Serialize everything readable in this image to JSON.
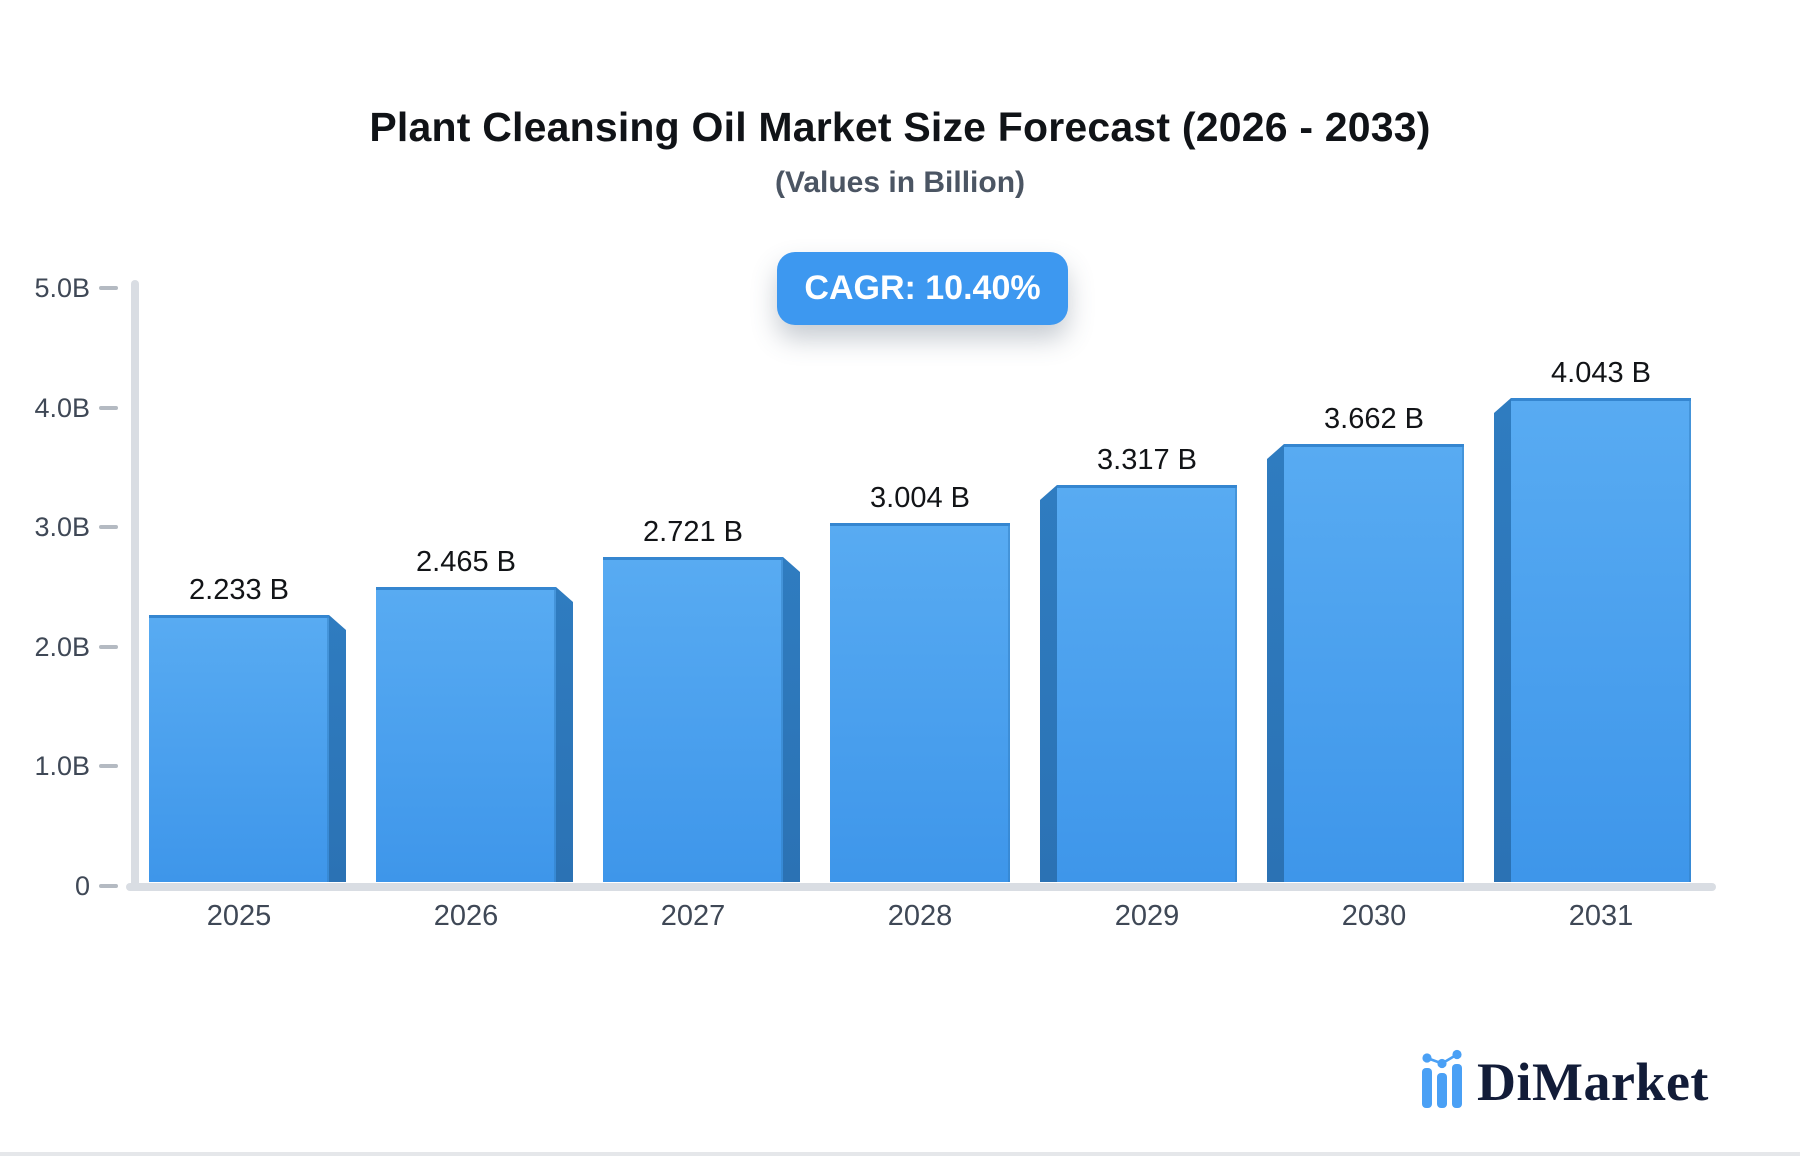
{
  "header": {
    "title": "Plant Cleansing Oil Market Size Forecast (2026 - 2033)",
    "subtitle": "(Values in Billion)"
  },
  "badge": {
    "label": "CAGR: 10.40%"
  },
  "chart_data": {
    "type": "bar",
    "title": "Plant Cleansing Oil Market Size Forecast (2026 - 2033)",
    "subtitle": "(Values in Billion)",
    "cagr": "CAGR: 10.40%",
    "categories": [
      "2025",
      "2026",
      "2027",
      "2028",
      "2029",
      "2030",
      "2031"
    ],
    "values": [
      2.233,
      2.465,
      2.721,
      3.004,
      3.317,
      3.662,
      4.043
    ],
    "value_labels": [
      "2.233 B",
      "2.465 B",
      "2.721 B",
      "3.004 B",
      "3.317 B",
      "3.662 B",
      "4.043 B"
    ],
    "unit": "Billion",
    "ylim": [
      0,
      5
    ],
    "y_ticks": [
      {
        "value": 0,
        "label": "0"
      },
      {
        "value": 1,
        "label": "1.0B"
      },
      {
        "value": 2,
        "label": "2.0B"
      },
      {
        "value": 3,
        "label": "3.0B"
      },
      {
        "value": 4,
        "label": "4.0B"
      },
      {
        "value": 5,
        "label": "5.0B"
      }
    ],
    "grid": false,
    "legend": "none",
    "colors": {
      "bar_face_top": "#58abf2",
      "bar_face_bottom": "#3e96ea",
      "bar_side": "#2e79bc",
      "axis": "#d9dde3",
      "tick_text": "#3f4856",
      "value_text": "#121417",
      "badge_bg": "#3d98f0",
      "badge_text": "#ffffff"
    }
  },
  "footer": {
    "brand": "DiMarket",
    "logo_icon": "bar-line-chart-icon",
    "logo_color": "#4aa0f5"
  }
}
